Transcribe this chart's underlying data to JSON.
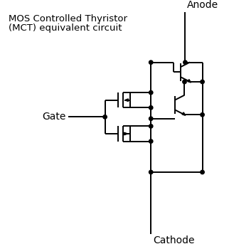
{
  "title_line1": "MOS Controlled Thyristor",
  "title_line2": "(MCT) equivalent circuit",
  "anode_label": "Anode",
  "cathode_label": "Cathode",
  "gate_label": "Gate",
  "bg_color": "#ffffff",
  "line_color": "#000000",
  "font_size_title": 9.5,
  "font_size_label": 10,
  "figsize": [
    3.22,
    3.5
  ],
  "dpi": 100
}
